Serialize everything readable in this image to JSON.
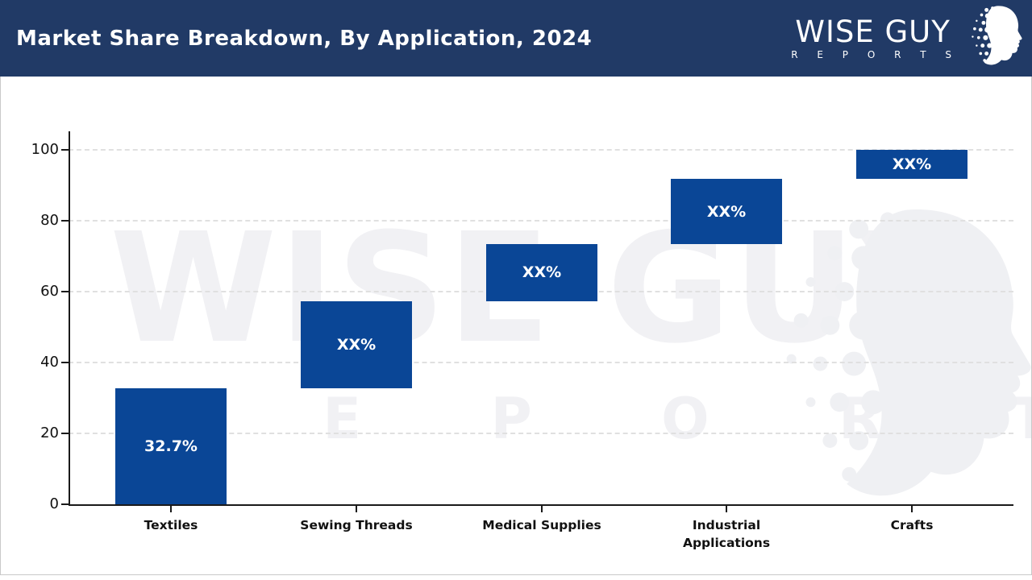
{
  "header": {
    "title": "Market Share Breakdown, By Application, 2024",
    "bg_color": "#213a66",
    "logo": {
      "line1": "WISE GUY",
      "line2": "R E P O R T S"
    }
  },
  "watermark": {
    "line1": "WISE GUY",
    "line2": "R E P O R T S"
  },
  "chart_data": {
    "type": "bar",
    "subtype": "waterfall-stacked-breakdown",
    "title": "Market Share Breakdown, By Application, 2024",
    "categories": [
      "Textiles",
      "Sewing Threads",
      "Medical Supplies",
      "Industrial Applications",
      "Crafts"
    ],
    "values": [
      32.7,
      24.6,
      16.1,
      18.4,
      8.2
    ],
    "segments": [
      {
        "label": "Textiles",
        "start": 0,
        "end": 32.7,
        "value_label": "32.7%"
      },
      {
        "label": "Sewing Threads",
        "start": 32.7,
        "end": 57.3,
        "value_label": "XX%"
      },
      {
        "label": "Medical Supplies",
        "start": 57.3,
        "end": 73.4,
        "value_label": "XX%"
      },
      {
        "label": "Industrial Applications",
        "start": 73.4,
        "end": 91.8,
        "value_label": "XX%"
      },
      {
        "label": "Crafts",
        "start": 91.8,
        "end": 100,
        "value_label": "XX%"
      }
    ],
    "xlabel": "",
    "ylabel": "",
    "ylim": [
      0,
      100
    ],
    "y_ticks": [
      0,
      20,
      40,
      60,
      80,
      100
    ],
    "bar_color": "#0a4696",
    "grid": "horizontal-dashed",
    "legend": "none"
  }
}
